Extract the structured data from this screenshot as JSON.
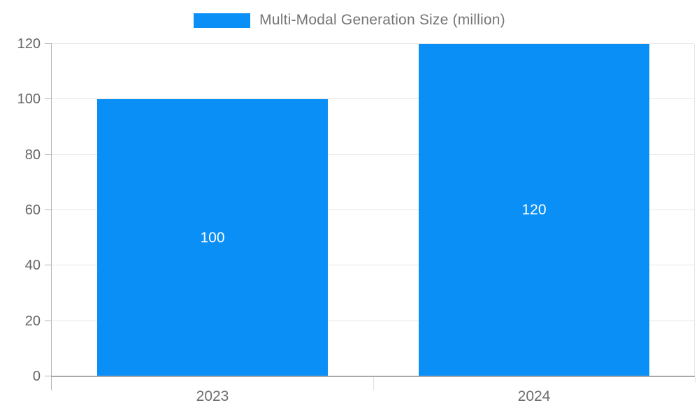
{
  "chart_data": {
    "type": "bar",
    "title": "",
    "legend": {
      "label": "Multi-Modal Generation Size (million)",
      "position": "top"
    },
    "categories": [
      "2023",
      "2024"
    ],
    "series": [
      {
        "name": "Multi-Modal Generation Size (million)",
        "values": [
          100,
          120
        ]
      }
    ],
    "value_labels": [
      "100",
      "120"
    ],
    "ylabel": "",
    "xlabel": "",
    "ylim": [
      0,
      120
    ],
    "yticks": [
      0,
      20,
      40,
      60,
      80,
      100,
      120
    ],
    "grid": true,
    "colors": {
      "bar": "#0a8ff7",
      "grid": "#e6e6e6",
      "axis": "#b3b3b3",
      "tick_label": "#666666",
      "legend_text": "#757575",
      "value_label": "#ffffff",
      "background": "#ffffff"
    }
  }
}
